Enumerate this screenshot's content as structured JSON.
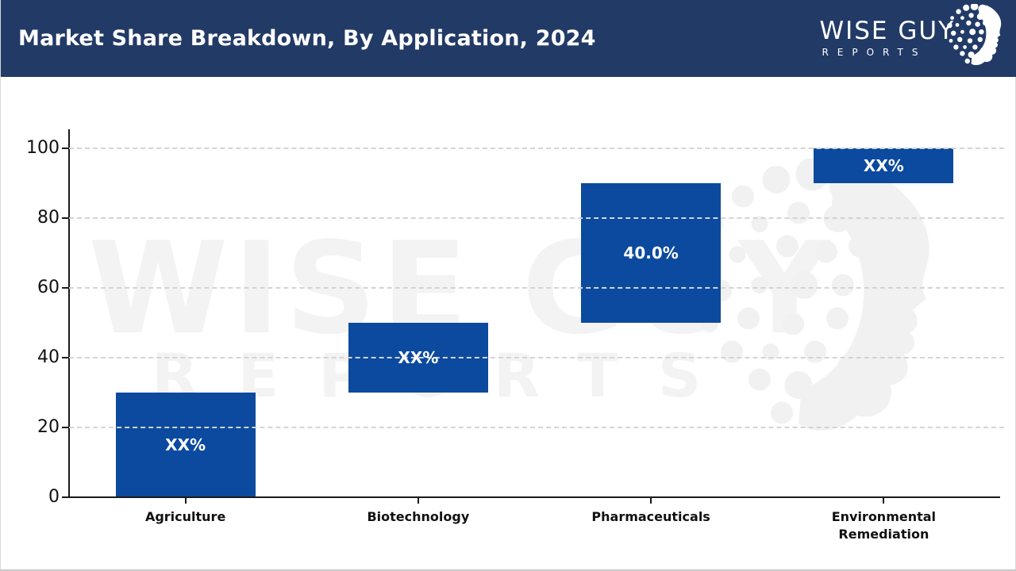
{
  "header": {
    "title": "Market Share Breakdown, By Application, 2024",
    "logo": {
      "line1": "WISE GUY",
      "line2": "REPORTS"
    }
  },
  "watermark": {
    "line1": "WISE GUY",
    "line2": "REPORTS"
  },
  "colors": {
    "header_bg": "#223a66",
    "bar": "#0b4a9e",
    "grid": "#d4d4d4",
    "axis": "#1a1a1a",
    "watermark": "#f3f3f3",
    "bar_label_text": "#ffffff",
    "title_text": "#ffffff"
  },
  "chart_data": {
    "type": "bar",
    "subtype": "waterfall",
    "title": "Market Share Breakdown, By Application, 2024",
    "categories": [
      "Agriculture",
      "Biotechnology",
      "Pharmaceuticals",
      "Environmental Remediation"
    ],
    "segments": [
      {
        "category": "Agriculture",
        "start": 0,
        "end": 30,
        "label": "XX%"
      },
      {
        "category": "Biotechnology",
        "start": 30,
        "end": 50,
        "label": "XX%"
      },
      {
        "category": "Pharmaceuticals",
        "start": 50,
        "end": 90,
        "label": "40.0%"
      },
      {
        "category": "Environmental Remediation",
        "start": 90,
        "end": 100,
        "label": "XX%"
      }
    ],
    "values": [
      30,
      20,
      40,
      10
    ],
    "yticks": [
      0,
      20,
      40,
      60,
      80,
      100
    ],
    "ylim": [
      0,
      105
    ],
    "xlabel": "",
    "ylabel": "",
    "grid": "horizontal-dashed",
    "legend": "none"
  }
}
